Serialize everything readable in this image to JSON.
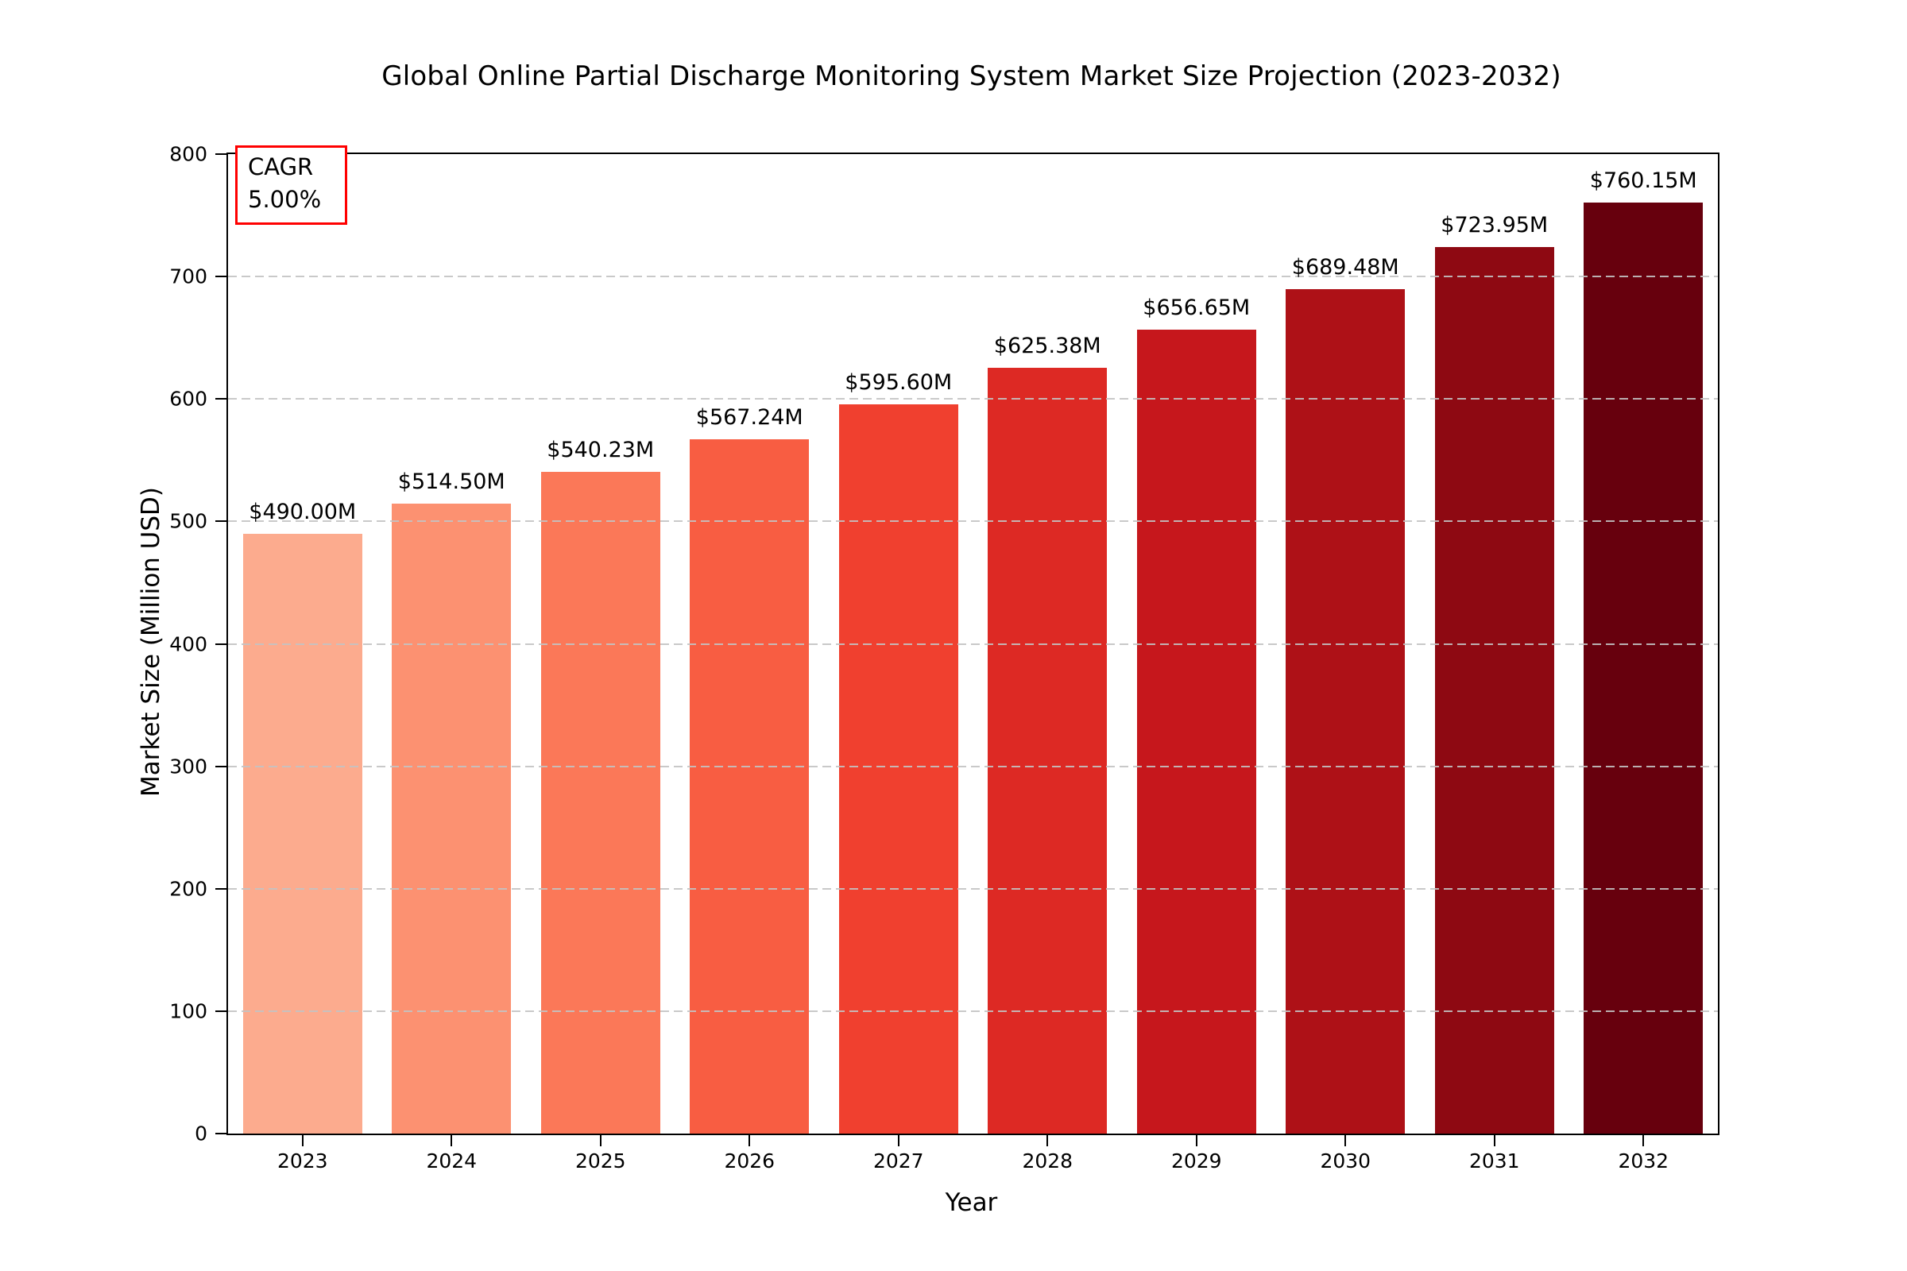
{
  "figure": {
    "background": "#ffffff"
  },
  "annotation": {
    "line1": "CAGR",
    "line2": "5.00%",
    "border_color": "#ff0000"
  },
  "chart_data": {
    "type": "bar",
    "title": "Global Online Partial Discharge Monitoring System Market Size Projection (2023-2032)",
    "xlabel": "Year",
    "ylabel": "Market Size (Million USD)",
    "categories": [
      "2023",
      "2024",
      "2025",
      "2026",
      "2027",
      "2028",
      "2029",
      "2030",
      "2031",
      "2032"
    ],
    "values": [
      490.0,
      514.5,
      540.23,
      567.24,
      595.6,
      625.38,
      656.65,
      689.48,
      723.95,
      760.15
    ],
    "bar_labels": [
      "$490.00M",
      "$514.50M",
      "$540.23M",
      "$567.24M",
      "$595.60M",
      "$625.38M",
      "$656.65M",
      "$689.48M",
      "$723.95M",
      "$760.15M"
    ],
    "bar_colors": [
      "#FCAB8E",
      "#FC9171",
      "#FB7858",
      "#F85D42",
      "#F0402F",
      "#DD2924",
      "#C6171C",
      "#AE1117",
      "#8E0912",
      "#67000D"
    ],
    "ylim": [
      0,
      800
    ],
    "yticks": [
      0,
      100,
      200,
      300,
      400,
      500,
      600,
      700,
      800
    ],
    "grid": "horizontal dashed gray",
    "legend": "none",
    "annotation_text": "CAGR 5.00%"
  }
}
